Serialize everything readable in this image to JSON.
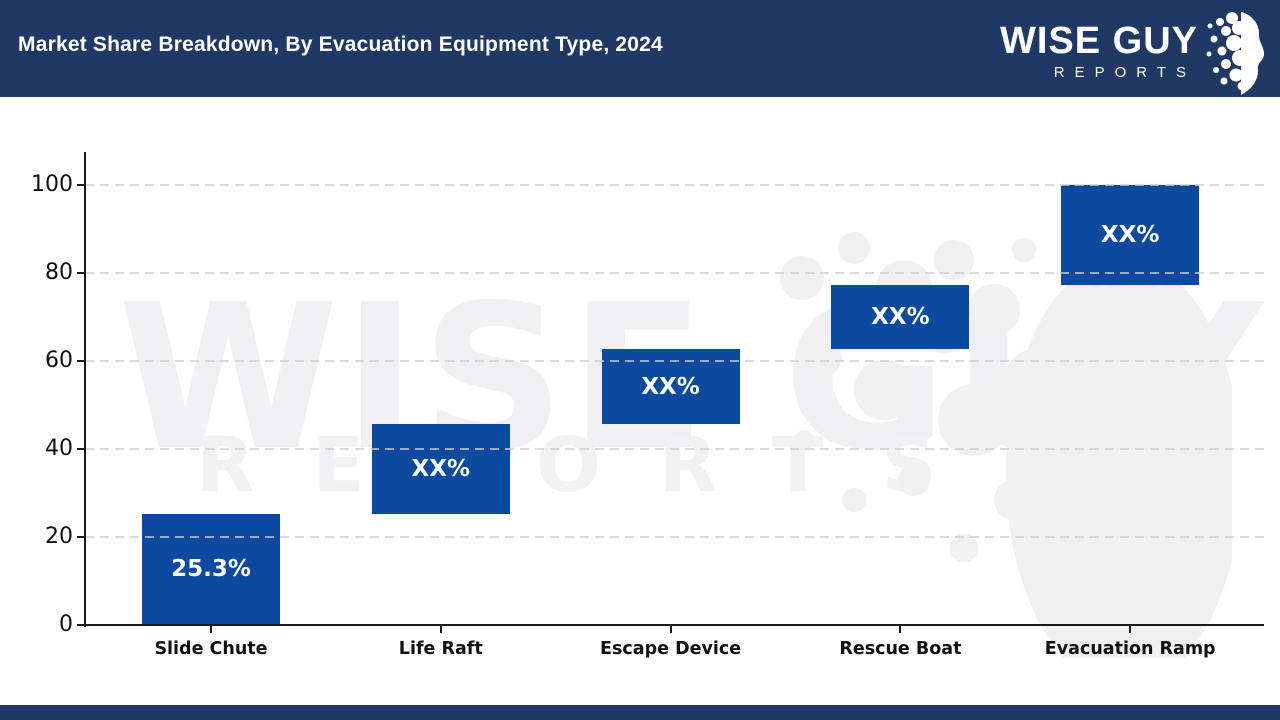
{
  "header": {
    "title": "Market Share Breakdown, By Evacuation Equipment Type, 2024",
    "brand_line1": "WISE GUY",
    "brand_line2": "REPORTS"
  },
  "watermark": {
    "line1": "WISE GUY",
    "line2": "REPORTS"
  },
  "chart_data": {
    "type": "bar",
    "variant": "waterfall",
    "title": "Market Share Breakdown, By Evacuation Equipment Type, 2024",
    "categories": [
      "Slide Chute",
      "Life Raft",
      "Escape Device",
      "Rescue Boat",
      "Evacuation Ramp"
    ],
    "segments": [
      {
        "category": "Slide Chute",
        "start": 0,
        "end": 25.3,
        "label": "25.3%"
      },
      {
        "category": "Life Raft",
        "start": 25.3,
        "end": 45.6,
        "label": "XX%"
      },
      {
        "category": "Escape Device",
        "start": 45.6,
        "end": 62.8,
        "label": "XX%"
      },
      {
        "category": "Rescue Boat",
        "start": 62.8,
        "end": 77.2,
        "label": "XX%"
      },
      {
        "category": "Evacuation Ramp",
        "start": 77.2,
        "end": 100,
        "label": "XX%"
      }
    ],
    "xlabel": "",
    "ylabel": "",
    "ylim": [
      0,
      107
    ],
    "yticks": [
      0,
      20,
      40,
      60,
      80,
      100
    ],
    "grid": true,
    "gridline_style": "dashed",
    "legend": false,
    "bar_color": "#0b4a9e",
    "bar_label_color": "#ffffff",
    "header_color": "#1f3865"
  }
}
